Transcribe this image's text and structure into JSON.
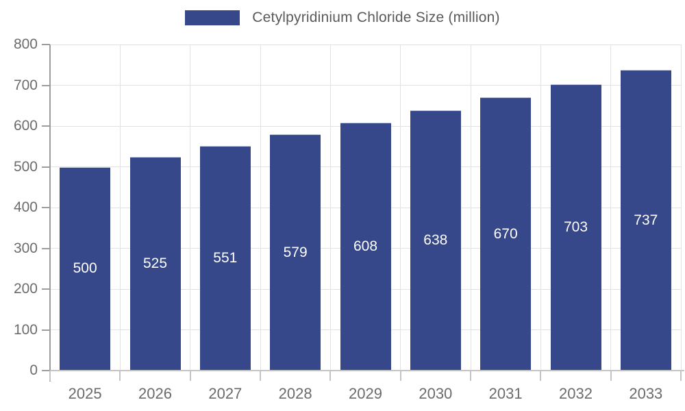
{
  "legend": {
    "label": "Cetylpyridinium Chloride Size (million)",
    "swatch_color": "#36488a"
  },
  "colors": {
    "bar": "#36488a",
    "grid": "#e2e2e2",
    "axis_spine": "#9c9c9c",
    "baseline": "#c4c4c4",
    "tick_text": "#6b6b6b",
    "legend_text": "#595959",
    "value_text": "#ffffff",
    "background": "#ffffff"
  },
  "chart_data": {
    "type": "bar",
    "title": "",
    "legend_entries": [
      "Cetylpyridinium Chloride Size (million)"
    ],
    "legend_position": "top-center",
    "categories": [
      "2025",
      "2026",
      "2027",
      "2028",
      "2029",
      "2030",
      "2031",
      "2032",
      "2033"
    ],
    "values": [
      500,
      525,
      551,
      579,
      608,
      638,
      670,
      703,
      737
    ],
    "series_name": "Cetylpyridinium Chloride Size (million)",
    "xlabel": "",
    "ylabel": "",
    "ylim": [
      0,
      800
    ],
    "ytick_step": 100,
    "yticks": [
      0,
      100,
      200,
      300,
      400,
      500,
      600,
      700,
      800
    ],
    "grid": true,
    "value_labels": "inside-middle",
    "bar_color": "#36488a"
  }
}
